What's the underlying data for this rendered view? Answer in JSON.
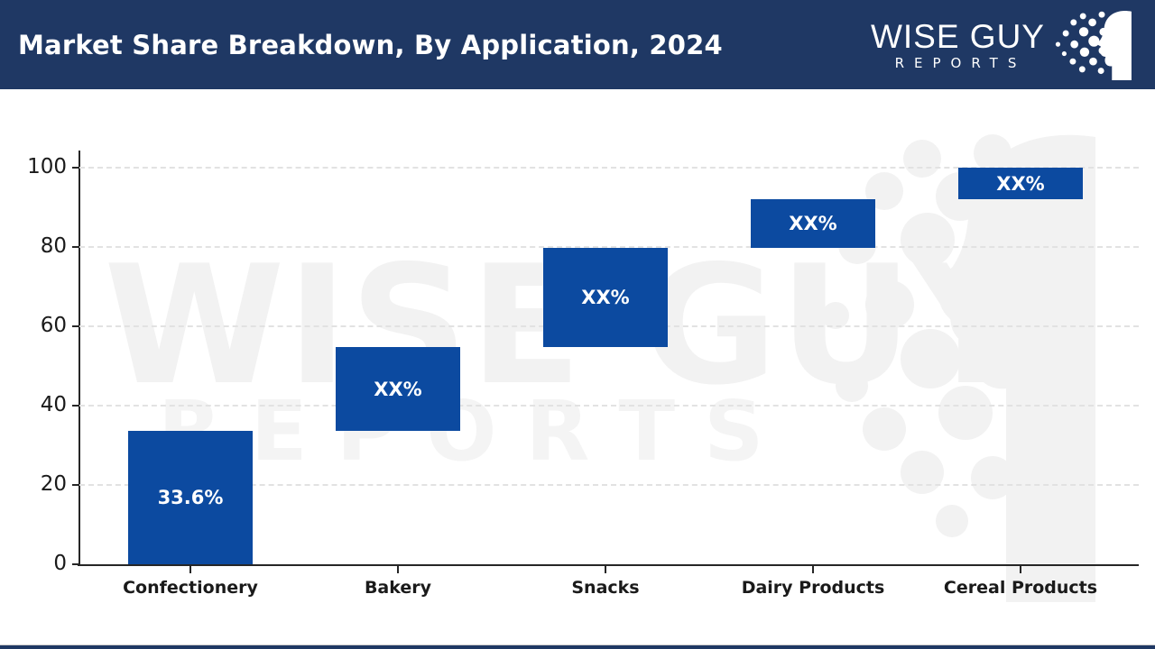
{
  "header": {
    "title": "Market Share Breakdown, By Application, 2024",
    "logo": {
      "line1": "WISE GUY",
      "line2": "REPORTS"
    }
  },
  "watermark": {
    "line1": "WISE GUY",
    "line2": "R E P O R T S"
  },
  "chart_data": {
    "type": "bar",
    "subtype": "floating-segment-waterfall",
    "title": "Market Share Breakdown, By Application, 2024",
    "categories": [
      "Confectionery",
      "Bakery",
      "Snacks",
      "Dairy Products",
      "Cereal Products"
    ],
    "segments": [
      {
        "category": "Confectionery",
        "start": 0,
        "end": 33.6,
        "label": "33.6%"
      },
      {
        "category": "Bakery",
        "start": 33.6,
        "end": 54.7,
        "label": "XX%"
      },
      {
        "category": "Snacks",
        "start": 54.7,
        "end": 79.8,
        "label": "XX%"
      },
      {
        "category": "Dairy Products",
        "start": 79.8,
        "end": 92.0,
        "label": "XX%"
      },
      {
        "category": "Cereal Products",
        "start": 92.0,
        "end": 100.0,
        "label": "XX%"
      }
    ],
    "xlabel": "",
    "ylabel": "",
    "y_ticks": [
      0,
      20,
      40,
      60,
      80,
      100
    ],
    "ylim": [
      0,
      105
    ],
    "grid": "horizontal-dashed",
    "legend": "none",
    "bar_color": "#0c4aa0",
    "bar_label_color": "#ffffff"
  },
  "colors": {
    "header_bg": "#1f3864",
    "bar": "#0c4aa0",
    "axis": "#262626",
    "grid": "#e2e2e2",
    "watermark": "#f2f2f2"
  }
}
